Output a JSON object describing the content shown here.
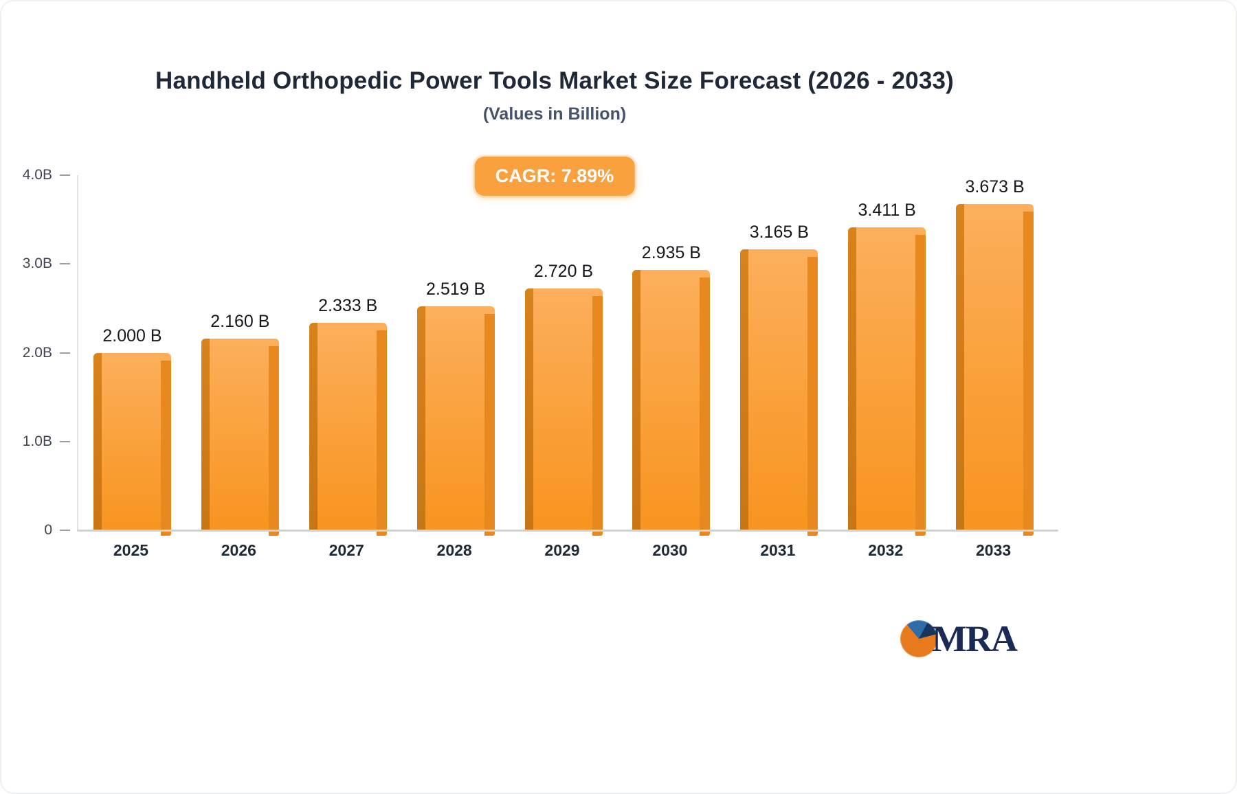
{
  "chart_data": {
    "type": "bar",
    "title": "Handheld Orthopedic Power Tools Market Size Forecast (2026 - 2033)",
    "subtitle": "(Values in Billion)",
    "cagr_label": "CAGR: 7.89%",
    "categories": [
      "2025",
      "2026",
      "2027",
      "2028",
      "2029",
      "2030",
      "2031",
      "2032",
      "2033"
    ],
    "values": [
      2.0,
      2.16,
      2.333,
      2.519,
      2.72,
      2.935,
      3.165,
      3.411,
      3.673
    ],
    "value_labels": [
      "2.000 B",
      "2.160 B",
      "2.333 B",
      "2.519 B",
      "2.720 B",
      "2.935 B",
      "3.165 B",
      "3.411 B",
      "3.673 B"
    ],
    "xlabel": "",
    "ylabel": "",
    "ylim": [
      0,
      4
    ],
    "y_ticks": [
      {
        "label": "4.0B",
        "value": 4
      },
      {
        "label": "3.0B",
        "value": 3
      },
      {
        "label": "2.0B",
        "value": 2
      },
      {
        "label": "1.0B",
        "value": 1
      },
      {
        "label": "0",
        "value": 0
      }
    ],
    "grid": false,
    "legend": false,
    "colors": {
      "bar_top": "#FCAF5B",
      "bar_bottom": "#F8941F",
      "bar_left_edge": "#C87614",
      "bar_right_edge": "#E7891E",
      "accent_badge": "#F9A03F",
      "title_text": "#1e2836",
      "subtitle_text": "#44546a"
    }
  },
  "logo": {
    "text": "MRA"
  }
}
